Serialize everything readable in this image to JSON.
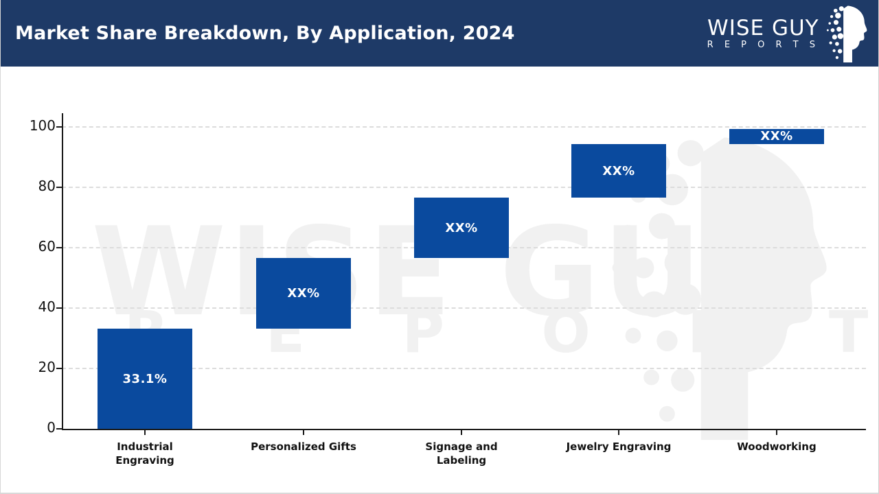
{
  "header": {
    "title": "Market Share Breakdown, By Application, 2024",
    "logo_line1": "WISE GUY",
    "logo_line2": "R E P O R T S"
  },
  "watermark": {
    "line1": "WISE GUY",
    "line2": "R E P O R T S"
  },
  "colors": {
    "header_bg": "#1e3a67",
    "bar": "#0a4a9e",
    "bar_label": "#ffffff",
    "grid": "#dcdcdc",
    "axis": "#1a1a1a",
    "watermark": "#f1f1f1"
  },
  "chart_data": {
    "type": "bar",
    "subtype": "floating-segment-waterfall",
    "title": "Market Share Breakdown, By Application, 2024",
    "xlabel": "",
    "ylabel": "",
    "ylim": [
      0,
      105
    ],
    "yticks": [
      0,
      20,
      40,
      60,
      80,
      100
    ],
    "grid": "horizontal-dashed",
    "legend": "none",
    "categories": [
      "Industrial Engraving",
      "Personalized Gifts",
      "Signage and Labeling",
      "Jewelry Engraving",
      "Woodworking"
    ],
    "category_label_lines": [
      [
        "Industrial",
        "Engraving"
      ],
      [
        "Personalized Gifts"
      ],
      [
        "Signage and",
        "Labeling"
      ],
      [
        "Jewelry Engraving"
      ],
      [
        "Woodworking"
      ]
    ],
    "segments": [
      {
        "category": "Industrial Engraving",
        "start": 0,
        "end": 33.1,
        "label": "33.1%"
      },
      {
        "category": "Personalized Gifts",
        "start": 33.1,
        "end": 56.5,
        "label": "XX%"
      },
      {
        "category": "Signage and Labeling",
        "start": 56.5,
        "end": 76.6,
        "label": "XX%"
      },
      {
        "category": "Jewelry Engraving",
        "start": 76.6,
        "end": 94.3,
        "label": "XX%"
      },
      {
        "category": "Woodworking",
        "start": 94.3,
        "end": 99.4,
        "label": "XX%"
      }
    ]
  }
}
